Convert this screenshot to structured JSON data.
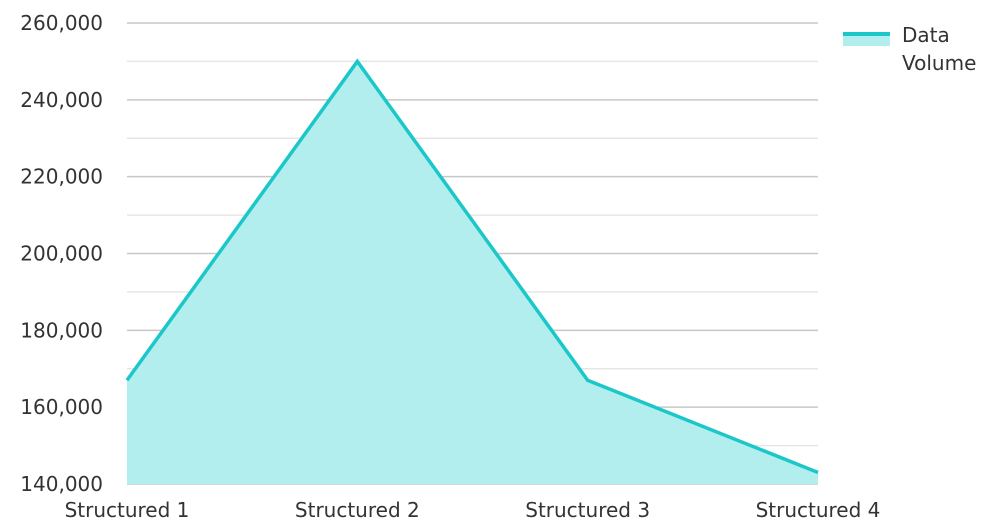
{
  "chart_data": {
    "type": "area",
    "categories": [
      "Structured 1",
      "Structured 2",
      "Structured 3",
      "Structured 4"
    ],
    "series": [
      {
        "name": "Data Volume",
        "values": [
          167000,
          250000,
          167000,
          143000
        ]
      }
    ],
    "ylim": [
      140000,
      260000
    ],
    "y_ticks": [
      140000,
      160000,
      180000,
      200000,
      220000,
      240000,
      260000
    ],
    "y_tick_labels": [
      "140,000",
      "160,000",
      "180,000",
      "200,000",
      "220,000",
      "240,000",
      "260,000"
    ],
    "grid": true,
    "legend": "top-right",
    "colors": {
      "line": "#1CC7C9",
      "fill": "#B2EEEE",
      "grid_major": "#C8C8C8",
      "grid_minor": "#E6E6E6"
    }
  }
}
